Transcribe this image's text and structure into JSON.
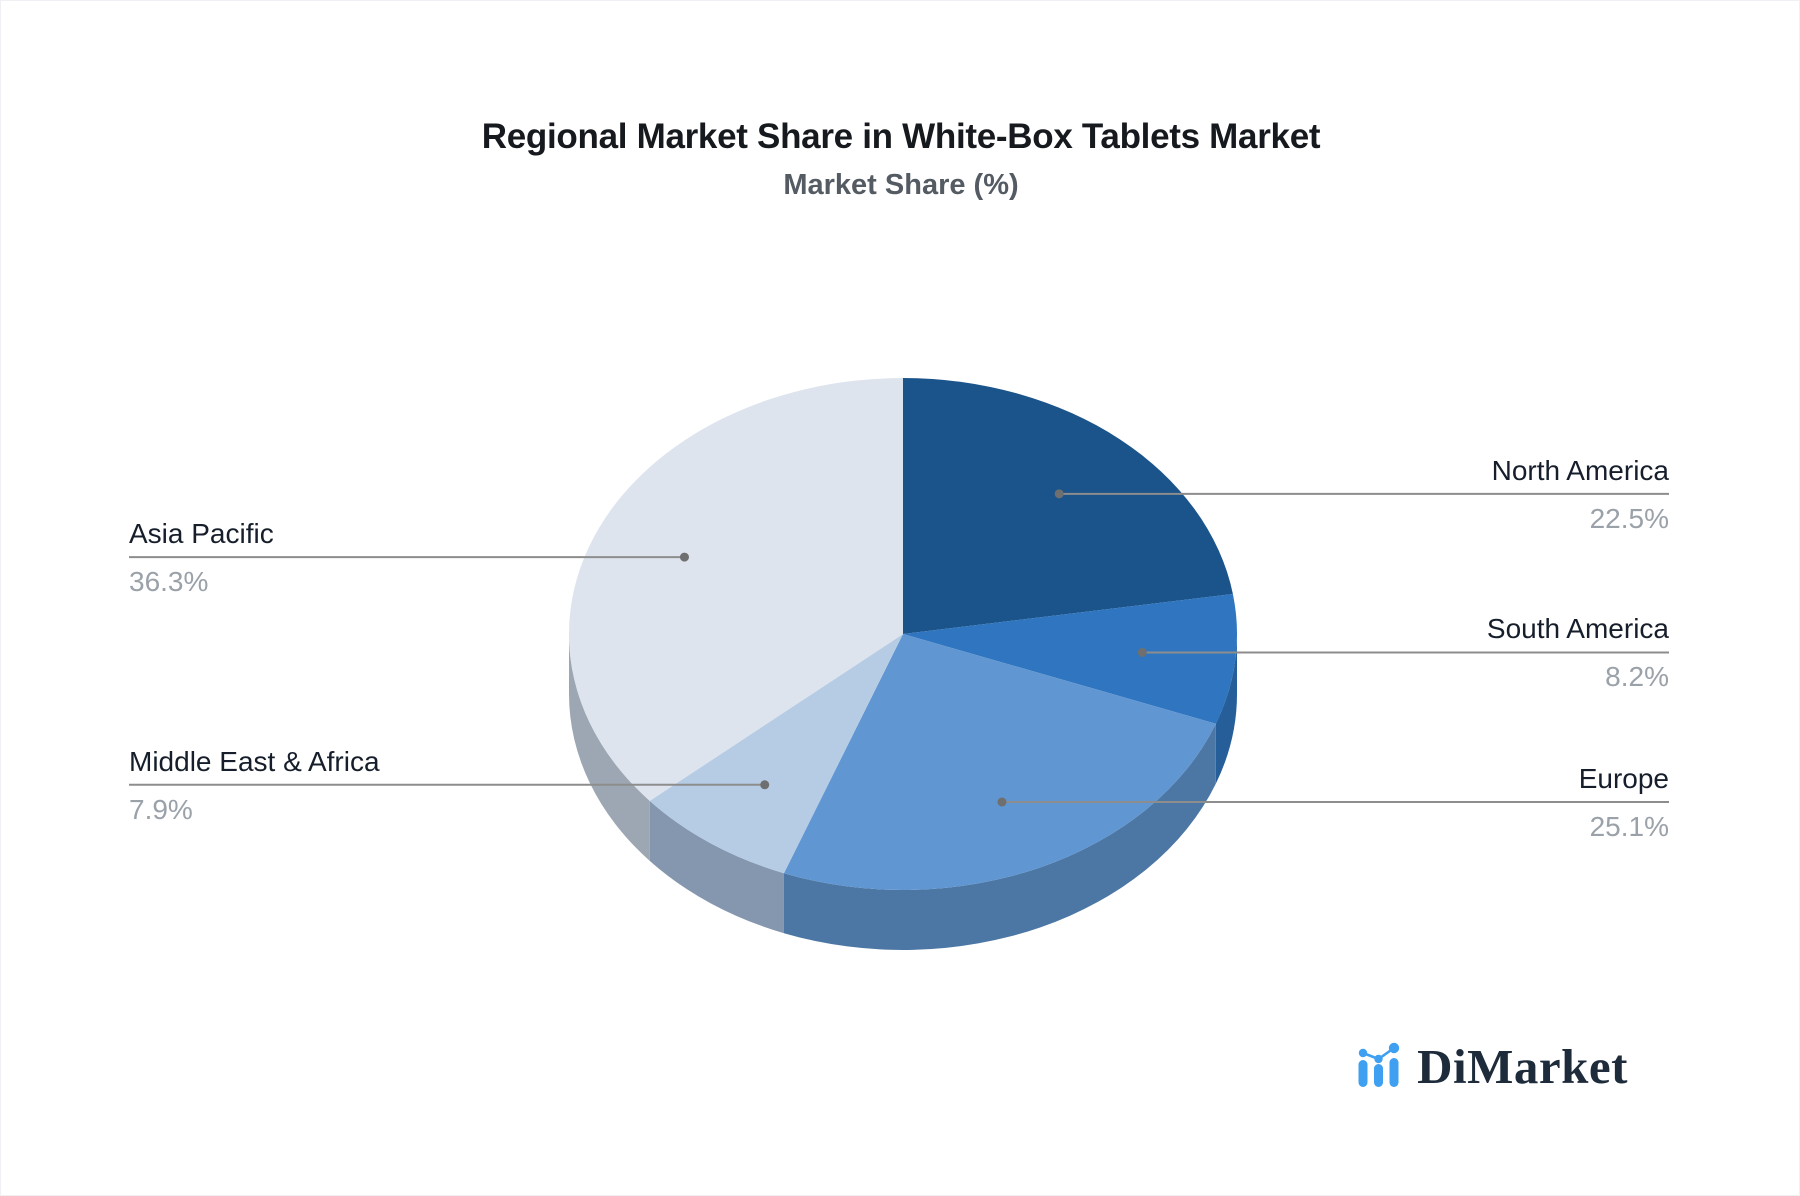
{
  "header": {
    "title": "Regional Market Share in White-Box Tablets Market",
    "subtitle": "Market Share (%)"
  },
  "chart_data": {
    "type": "pie",
    "title": "Regional Market Share in White-Box Tablets Market",
    "subtitle": "Market Share (%)",
    "unit": "%",
    "effect": "3d",
    "start_angle_deg": 0,
    "direction": "clockwise",
    "labels": [
      "North America",
      "South America",
      "Europe",
      "Middle East & Africa",
      "Asia Pacific"
    ],
    "values": [
      22.5,
      8.2,
      25.1,
      7.9,
      36.3
    ],
    "display_values": [
      "22.5%",
      "8.2%",
      "25.1%",
      "7.9%",
      "36.3%"
    ],
    "colors": [
      "#1B548A",
      "#2F75C0",
      "#6096D1",
      "#B6CCE5",
      "#DDE4EE"
    ],
    "side_colors": [
      "#163F68",
      "#265E99",
      "#4C77A4",
      "#8497AE",
      "#9DA7B3"
    ],
    "leader_line_color": "#8D8D8D",
    "leader_dot_color": "#6F6F6F",
    "label_color": "#161E2B",
    "value_color": "#9AA1A9",
    "legend_position": "none"
  },
  "logo": {
    "text": "DiMarket",
    "accent": "#3FA0F2",
    "text_color": "#1D2B3A"
  }
}
